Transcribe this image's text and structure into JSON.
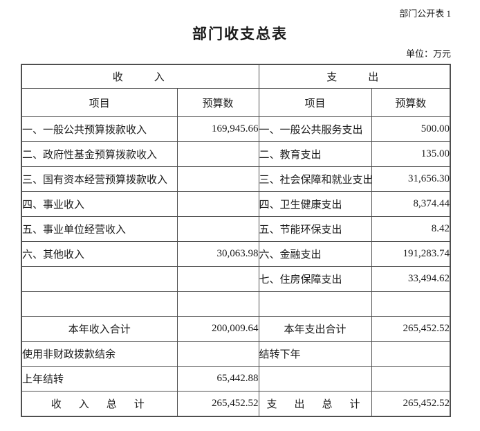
{
  "page": {
    "corner_label": "部门公开表 1",
    "title": "部门收支总表",
    "unit_label": "单位：万元"
  },
  "colors": {
    "border": "#4f4f4f",
    "text": "#1a1a1a",
    "background": "#ffffff"
  },
  "table": {
    "income_section_header": "收　　入",
    "expense_section_header": "支　　出",
    "column_headers": {
      "item": "项目",
      "budget": "预算数"
    },
    "rows": [
      {
        "income_item": "一、一般公共预算拨款收入",
        "income_value": "169,945.66",
        "expense_item": "一、一般公共服务支出",
        "expense_value": "500.00"
      },
      {
        "income_item": "二、政府性基金预算拨款收入",
        "income_value": "",
        "expense_item": "二、教育支出",
        "expense_value": "135.00"
      },
      {
        "income_item": "三、国有资本经营预算拨款收入",
        "income_value": "",
        "expense_item": "三、社会保障和就业支出",
        "expense_value": "31,656.30"
      },
      {
        "income_item": "四、事业收入",
        "income_value": "",
        "expense_item": "四、卫生健康支出",
        "expense_value": "8,374.44"
      },
      {
        "income_item": "五、事业单位经营收入",
        "income_value": "",
        "expense_item": "五、节能环保支出",
        "expense_value": "8.42"
      },
      {
        "income_item": "六、其他收入",
        "income_value": "30,063.98",
        "expense_item": "六、金融支出",
        "expense_value": "191,283.74"
      },
      {
        "income_item": "",
        "income_value": "",
        "expense_item": "七、住房保障支出",
        "expense_value": "33,494.62"
      },
      {
        "income_item": "",
        "income_value": "",
        "expense_item": "",
        "expense_value": ""
      },
      {
        "income_item": "本年收入合计",
        "income_value": "200,009.64",
        "expense_item": "本年支出合计",
        "expense_value": "265,452.52",
        "income_item_align": "center",
        "expense_item_align": "center"
      },
      {
        "income_item": "使用非财政拨款结余",
        "income_value": "",
        "expense_item": "结转下年",
        "expense_value": ""
      },
      {
        "income_item": "上年结转",
        "income_value": "65,442.88",
        "expense_item": "",
        "expense_value": ""
      },
      {
        "income_item": "收　入　总　计",
        "income_value": "265,452.52",
        "expense_item": "支　出　总　计",
        "expense_value": "265,452.52",
        "income_item_align": "center-spread",
        "expense_item_align": "center-spread"
      }
    ]
  }
}
